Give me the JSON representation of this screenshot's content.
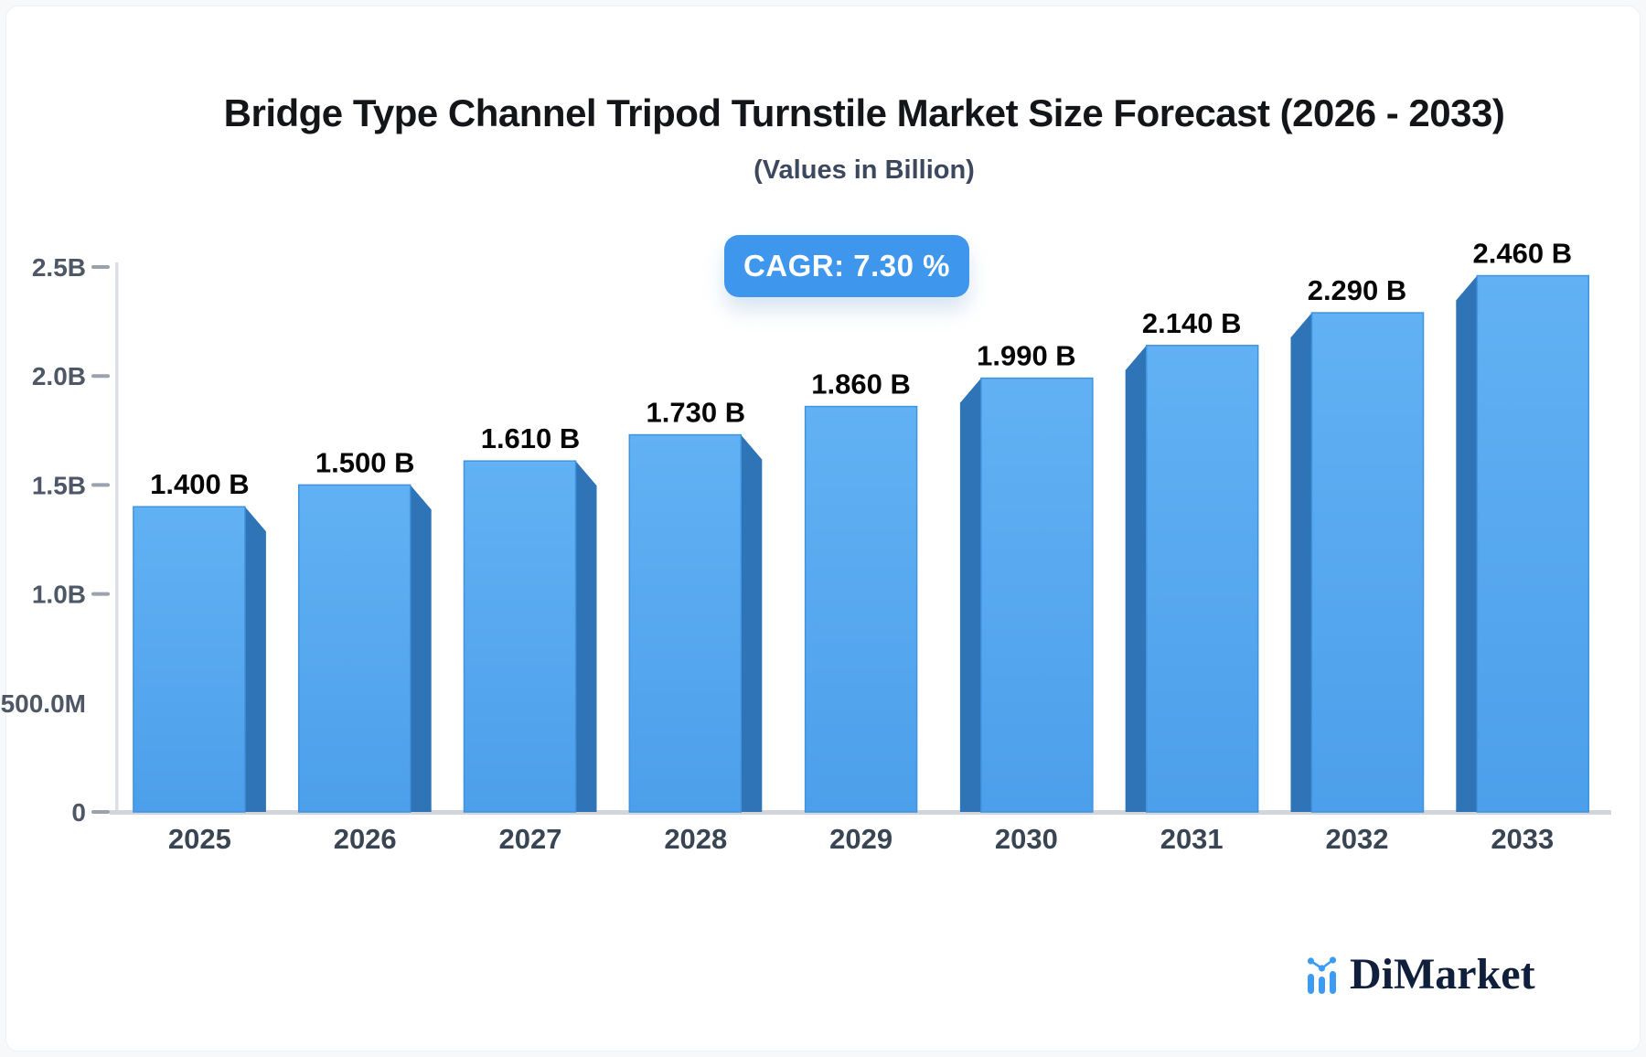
{
  "header": {
    "title": "Bridge Type Channel Tripod Turnstile Market Size Forecast (2026 - 2033)",
    "subtitle": "(Values in Billion)"
  },
  "cagr_badge": {
    "label": "CAGR: 7.30 %",
    "background": "#3F97ED",
    "text_color": "#FFFFFF"
  },
  "chart_data": {
    "type": "bar",
    "title": "Bridge Type Channel Tripod Turnstile Market Size Forecast (2026 - 2033)",
    "subtitle": "(Values in Billion)",
    "categories": [
      "2025",
      "2026",
      "2027",
      "2028",
      "2029",
      "2030",
      "2031",
      "2032",
      "2033"
    ],
    "values": [
      1.4,
      1.5,
      1.61,
      1.73,
      1.86,
      1.99,
      2.14,
      2.29,
      2.46
    ],
    "value_labels": [
      "1.400 B",
      "1.500 B",
      "1.610 B",
      "1.730 B",
      "1.860 B",
      "1.990 B",
      "2.140 B",
      "2.290 B",
      "2.460 B"
    ],
    "xlabel": "",
    "ylabel": "",
    "ylim": [
      0,
      2.5
    ],
    "grid": false,
    "legend": "none",
    "y_ticks": [
      {
        "label": "2.5B",
        "value": 2.5,
        "dash": true
      },
      {
        "label": "2.0B",
        "value": 2.0,
        "dash": true
      },
      {
        "label": "1.5B",
        "value": 1.5,
        "dash": true
      },
      {
        "label": "1.0B",
        "value": 1.0,
        "dash": true
      },
      {
        "label": "500.0M",
        "value": 0.5,
        "dash": false
      },
      {
        "label": "0",
        "value": 0.0,
        "dash": true
      }
    ],
    "colors": {
      "bar_face_top": "#61B1F4",
      "bar_face_bottom": "#4C9FEA",
      "bar_face_stroke": "#4093DF",
      "bar_side": "#2E74B6",
      "axis_line": "#DCDFE4",
      "baseline": "#D2D6DB",
      "tick_dash": "#99A2AD"
    }
  },
  "logo": {
    "name": "DiMarket",
    "icon": "mini-bar-line-chart-icon",
    "icon_color": "#3D9CF2",
    "text_color": "#101F3C"
  }
}
